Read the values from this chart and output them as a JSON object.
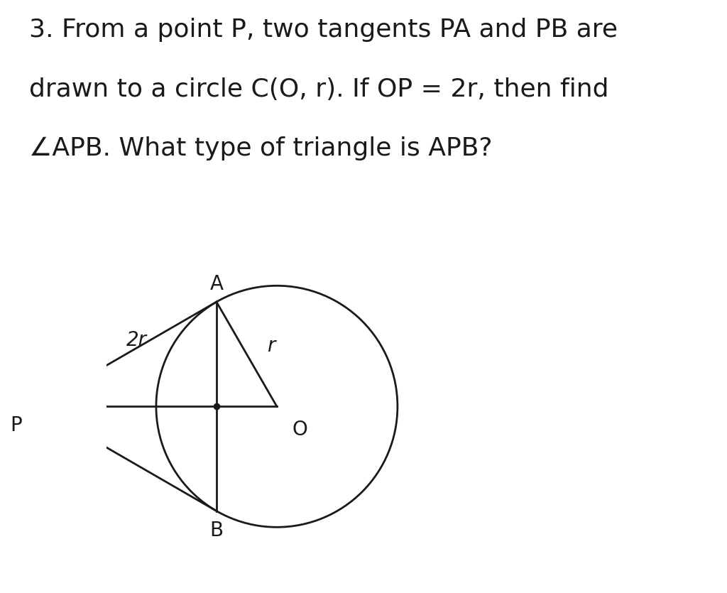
{
  "title_lines": [
    "3. From a point P, two tangents PA and PB are",
    "drawn to a circle C(O, r). If OP = 2r, then find",
    "∠APB. What type of triangle is APB?"
  ],
  "title_fontsize": 26,
  "background_color": "#ffffff",
  "text_color": "#1a1a1a",
  "line_color": "#1a1a1a",
  "r": 1.0,
  "label_P": "P",
  "label_O": "O",
  "label_A": "A",
  "label_B": "B",
  "label_2r": "2r",
  "label_r": "r",
  "next_button_color": "#555555",
  "diagram_scale": 2.2
}
